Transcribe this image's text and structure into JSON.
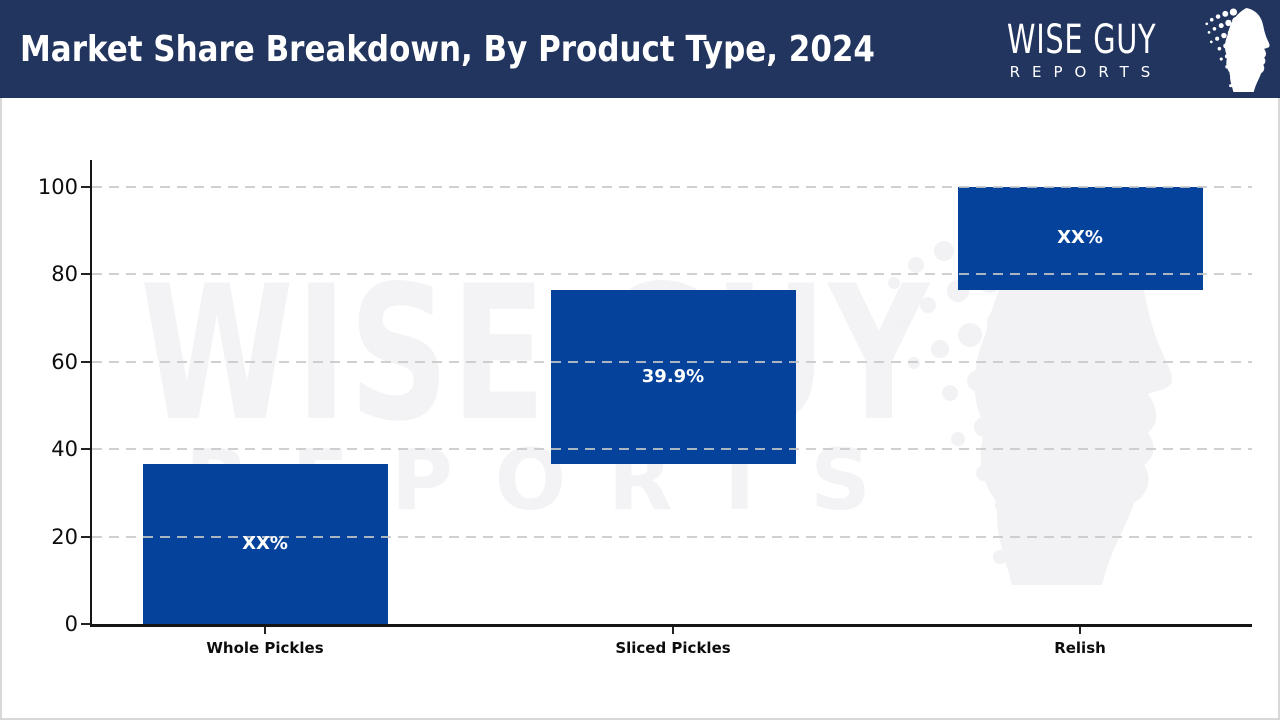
{
  "header": {
    "title": "Market Share Breakdown, By Product Type, 2024",
    "logo": {
      "line1": "WISE GUY",
      "line2": "REPORTS"
    }
  },
  "watermark": {
    "line1": "WISE GUY",
    "line2": "REPORTS"
  },
  "chart_data": {
    "type": "bar",
    "subtype": "floating-segment-waterfall",
    "title": "Market Share Breakdown, By Product Type, 2024",
    "categories": [
      "Whole Pickles",
      "Sliced Pickles",
      "Relish"
    ],
    "segments": [
      {
        "category": "Whole Pickles",
        "start": 0,
        "end": 36.6,
        "value_label": "XX%"
      },
      {
        "category": "Sliced Pickles",
        "start": 36.6,
        "end": 76.5,
        "value_label": "39.9%"
      },
      {
        "category": "Relish",
        "start": 76.5,
        "end": 100,
        "value_label": "XX%"
      }
    ],
    "xlabel": "",
    "ylabel": "",
    "ylim": [
      0,
      106
    ],
    "yticks": [
      0,
      20,
      40,
      60,
      80,
      100
    ],
    "grid": "horizontal-dashed",
    "legend": "none",
    "bar_color": "#05429B",
    "value_label_color": "#FFFFFF"
  },
  "colors": {
    "header_bg": "#21355F",
    "bar": "#05429B",
    "gridline": "#C8C8C8",
    "axis": "#151515",
    "watermark": "#F3F3F6",
    "page_border": "#D8D8D8"
  }
}
